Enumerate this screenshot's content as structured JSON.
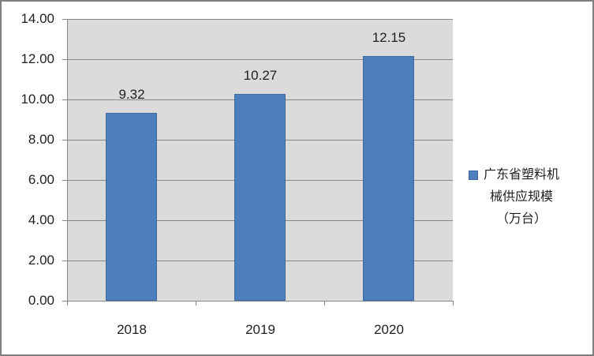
{
  "chart_data": {
    "type": "bar",
    "categories": [
      "2018",
      "2019",
      "2020"
    ],
    "values": [
      9.32,
      10.27,
      12.15
    ],
    "data_labels": [
      "9.32",
      "10.27",
      "12.15"
    ],
    "series_name": "广东省塑料机械供应规模（万台）",
    "title": "",
    "xlabel": "",
    "ylabel": "",
    "ylim": [
      0,
      14
    ],
    "ytick_step": 2,
    "ytick_labels": [
      "0.00",
      "2.00",
      "4.00",
      "6.00",
      "8.00",
      "10.00",
      "12.00",
      "14.00"
    ],
    "grid": true,
    "legend_position": "right"
  },
  "legend": {
    "lines": [
      "广东省塑料机",
      "械供应规模",
      "（万台）"
    ]
  },
  "colors": {
    "bar": "#4D7EBD",
    "bar_border": "#3F6A9F",
    "plot_bg": "#DBDBDB",
    "gridline": "#878787",
    "axis": "#878787",
    "text": "#1F1F1F",
    "chart_border": "#7F7F7F",
    "background": "#FFFFFF"
  }
}
